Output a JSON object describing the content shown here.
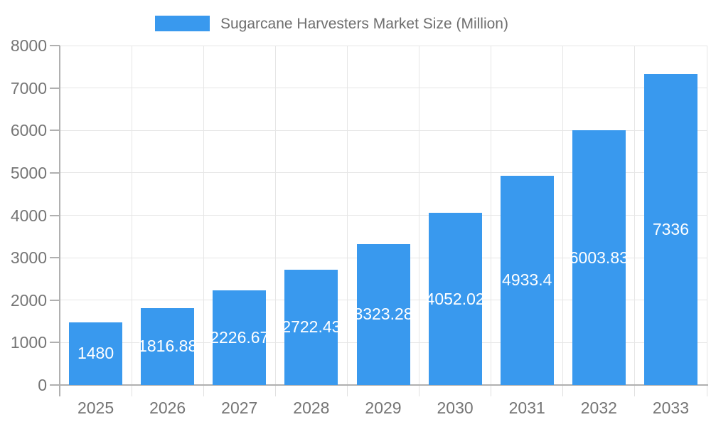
{
  "legend": {
    "label": "Sugarcane Harvesters Market Size (Million)"
  },
  "chart_data": {
    "type": "bar",
    "title": "Sugarcane Harvesters Market Size (Million)",
    "categories": [
      "2025",
      "2026",
      "2027",
      "2028",
      "2029",
      "2030",
      "2031",
      "2032",
      "2033"
    ],
    "values": [
      1480,
      1816.88,
      2226.67,
      2722.43,
      3323.28,
      4052.02,
      4933.4,
      6003.83,
      7336
    ],
    "bar_labels": [
      "1480",
      "1816.88",
      "2226.67",
      "2722.43",
      "3323.28",
      "4052.02",
      "4933.4",
      "6003.83",
      "7336"
    ],
    "xlabel": "",
    "ylabel": "",
    "ylim": [
      0,
      8000
    ],
    "y_ticks": [
      0,
      1000,
      2000,
      3000,
      4000,
      5000,
      6000,
      7000,
      8000
    ],
    "y_tick_labels": [
      "0",
      "1000",
      "2000",
      "3000",
      "4000",
      "5000",
      "6000",
      "7000",
      "8000"
    ],
    "grid": true,
    "legend_position": "top",
    "colors": {
      "bar": "#3999EE",
      "bar_label_text": "#FFFFFF",
      "gridline": "#E6E6E6",
      "axis_line": "#B0B0B0",
      "minor_tick": "#E0E0E0",
      "axis_text": "#757575",
      "legend_text": "#6E6E6E",
      "background": "#FFFFFF"
    }
  }
}
